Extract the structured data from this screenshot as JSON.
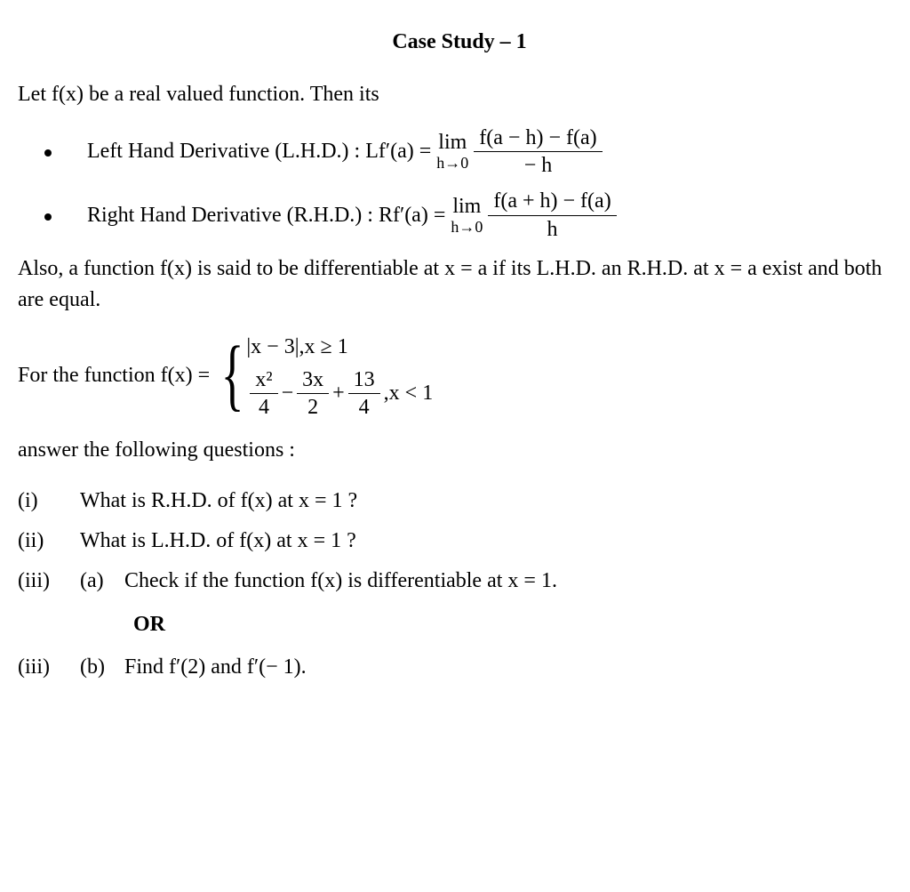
{
  "title": "Case Study – 1",
  "intro_prefix": ". ",
  "intro": "Let f(x) be a real valued function. Then its",
  "bullets": {
    "lhd": {
      "label": "Left Hand Derivative (L.H.D.) : Lf′(a) = ",
      "lim_top": "lim",
      "lim_bot": "h→0",
      "num": "f(a − h) − f(a)",
      "den": "− h"
    },
    "rhd": {
      "label": "Right Hand Derivative (R.H.D.) : Rf′(a) = ",
      "lim_top": "lim",
      "lim_bot": "h→0",
      "num": "f(a + h) − f(a)",
      "den": "h"
    }
  },
  "also": "Also, a function f(x) is said to be differentiable at x = a if its L.H.D. an R.H.D. at x = a exist and both are equal.",
  "func_label": "For the function f(x) =",
  "piece1_expr": "|x − 3|,",
  "piece1_cond": " x ≥ 1",
  "piece2_t1_num": "x²",
  "piece2_t1_den": "4",
  "piece2_minus": " − ",
  "piece2_t2_num": "3x",
  "piece2_t2_den": "2",
  "piece2_plus": " + ",
  "piece2_t3_num": "13",
  "piece2_t3_den": "4",
  "piece2_sep": ",",
  "piece2_cond": " x < 1",
  "answer_label": "answer the following questions :",
  "q1_num": "(i)",
  "q1_text": "What is R.H.D. of f(x) at x = 1 ?",
  "q2_num": "(ii)",
  "q2_text": "What is L.H.D. of f(x) at x = 1 ?",
  "q3a_num": "(iii)",
  "q3a_sub": "(a)",
  "q3a_text": "Check if the function f(x) is differentiable at x = 1.",
  "or_label": "OR",
  "q3b_num": "(iii)",
  "q3b_sub": "(b)",
  "q3b_text": "Find f′(2) and f′(− 1).",
  "colors": {
    "text": "#000000",
    "background": "#ffffff"
  },
  "fontsizes": {
    "body": 24,
    "lim_sub": 18,
    "brace": 90
  }
}
